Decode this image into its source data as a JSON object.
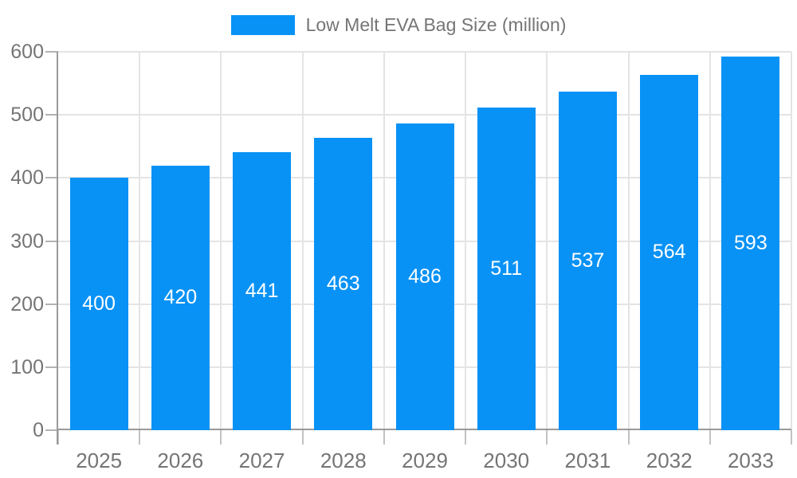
{
  "chart_data": {
    "type": "bar",
    "title": "",
    "legend_label": "Low Melt EVA Bag Size (million)",
    "legend_position": "top",
    "series_name": "Low Melt EVA Bag Size (million)",
    "categories": [
      "2025",
      "2026",
      "2027",
      "2028",
      "2029",
      "2030",
      "2031",
      "2032",
      "2033"
    ],
    "values": [
      400,
      420,
      441,
      463,
      486,
      511,
      537,
      564,
      593
    ],
    "bar_value_labels": [
      "400",
      "420",
      "441",
      "463",
      "486",
      "511",
      "537",
      "564",
      "593"
    ],
    "ylim": [
      0,
      600
    ],
    "ytick_step": 100,
    "ytick_labels": [
      "0",
      "100",
      "200",
      "300",
      "400",
      "500",
      "600"
    ],
    "grid": "on",
    "bar_labels_visible": true,
    "colors": {
      "bar": "#0992F5",
      "bar_label_text": "#FFFFFF",
      "axis_text": "#757575",
      "axis_line": "#9A9A9A",
      "gridline": "#E4E4E4",
      "background": "#FFFFFF"
    }
  }
}
